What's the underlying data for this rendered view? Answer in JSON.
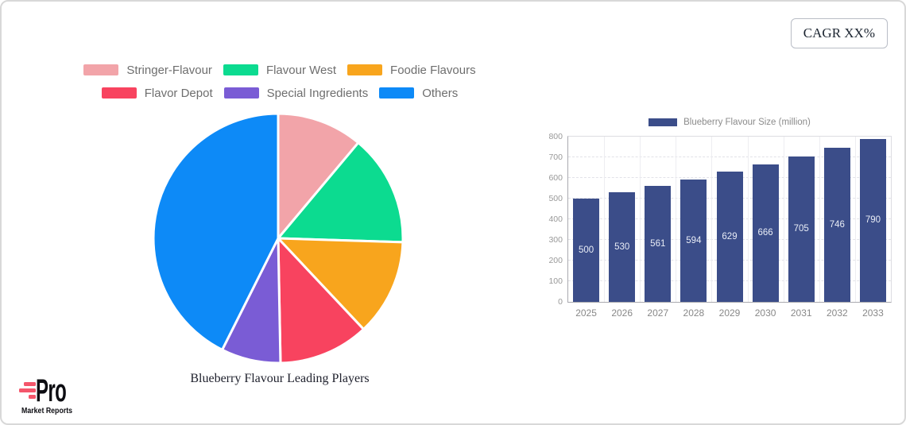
{
  "badge": {
    "label": "CAGR XX%"
  },
  "logo": {
    "title": "Pro",
    "subtitle": "Market Reports",
    "accent_color": "#f4566b"
  },
  "chart_data": [
    {
      "type": "pie",
      "title": "Blueberry Flavour Leading Players",
      "labels": [
        "Stringer-Flavour",
        "Flavour West",
        "Foodie Flavours",
        "Flavor Depot",
        "Special Ingredients",
        "Others"
      ],
      "values": [
        11.1,
        14.4,
        12.5,
        11.7,
        7.7,
        42.6
      ],
      "colors": [
        "#f2a4a9",
        "#0cdb90",
        "#f8a51d",
        "#f8435f",
        "#7a5cd5",
        "#0d8af7"
      ],
      "legend_position": "top",
      "start_angle": "top",
      "direction": "clockwise"
    },
    {
      "type": "bar",
      "legend": "Blueberry Flavour Size (million)",
      "categories": [
        "2025",
        "2026",
        "2027",
        "2028",
        "2029",
        "2030",
        "2031",
        "2032",
        "2033"
      ],
      "values": [
        500,
        530,
        561,
        594,
        629,
        666,
        705,
        746,
        790
      ],
      "ylim": [
        0,
        800
      ],
      "ytick_step": 100,
      "bar_color": "#3b4d89",
      "grid": true,
      "legend_position": "top"
    }
  ]
}
